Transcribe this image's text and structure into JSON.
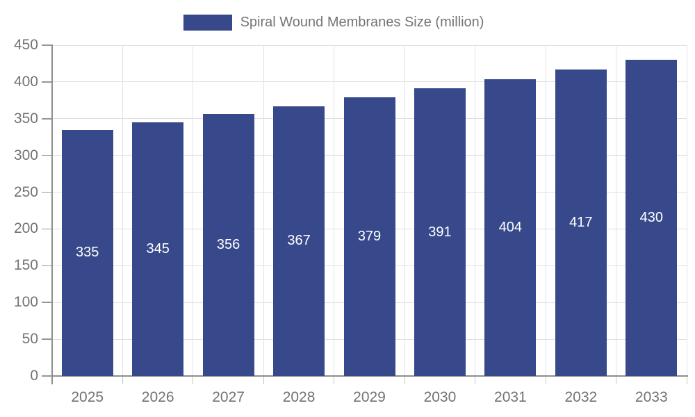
{
  "chart_data": {
    "type": "bar",
    "title": "Spiral Wound Membranes Size (million)",
    "categories": [
      "2025",
      "2026",
      "2027",
      "2028",
      "2029",
      "2030",
      "2031",
      "2032",
      "2033"
    ],
    "values": [
      335,
      345,
      356,
      367,
      379,
      391,
      404,
      417,
      430
    ],
    "series_name": "Spiral Wound Membranes Size (million)",
    "xlabel": "",
    "ylabel": "",
    "ylim": [
      0,
      450
    ],
    "ytick_step": 50,
    "yticks": [
      0,
      50,
      100,
      150,
      200,
      250,
      300,
      350,
      400,
      450
    ],
    "grid": true,
    "legend_position": "top",
    "value_labels": "inside-center",
    "colors": {
      "bar": "#37498B",
      "bar_value_label": "#ffffff",
      "axis_line": "#8e8e8e",
      "grid_line": "#e0e0e0",
      "tick_label": "#737373",
      "legend_text": "#757575",
      "background": "#ffffff"
    }
  }
}
